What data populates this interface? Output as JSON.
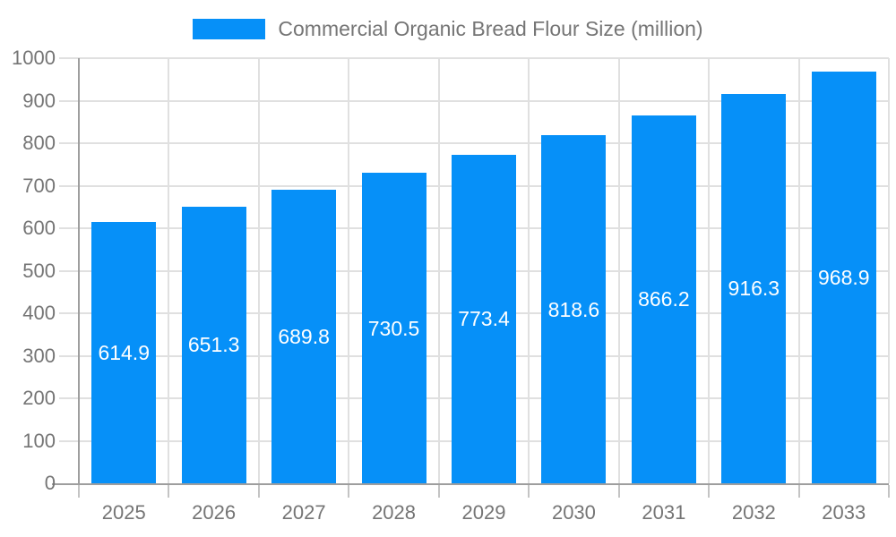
{
  "chart_data": {
    "type": "bar",
    "title": "Commercial Organic Bread Flour Size (million)",
    "categories": [
      "2025",
      "2026",
      "2027",
      "2028",
      "2029",
      "2030",
      "2031",
      "2032",
      "2033"
    ],
    "values": [
      614.9,
      651.3,
      689.8,
      730.5,
      773.4,
      818.6,
      866.2,
      916.3,
      968.9
    ],
    "value_labels": [
      "614.9",
      "651.3",
      "689.8",
      "730.5",
      "773.4",
      "818.6",
      "866.2",
      "916.3",
      "968.9"
    ],
    "xlabel": "",
    "ylabel": "",
    "ylim": [
      0,
      1000
    ],
    "ytick_step": 100,
    "ytick_labels": [
      "0",
      "100",
      "200",
      "300",
      "400",
      "500",
      "600",
      "700",
      "800",
      "900",
      "1000"
    ],
    "grid": true,
    "legend_position": "top",
    "bar_color": "#0690F8",
    "value_label_color": "#FFFFFF",
    "axis_text_color": "#757575",
    "gridline_color": "#E0E0E0",
    "axis_line_color": "#9E9E9E",
    "tick_color": "#C4C4C4",
    "background_color": "#FFFFFF"
  }
}
